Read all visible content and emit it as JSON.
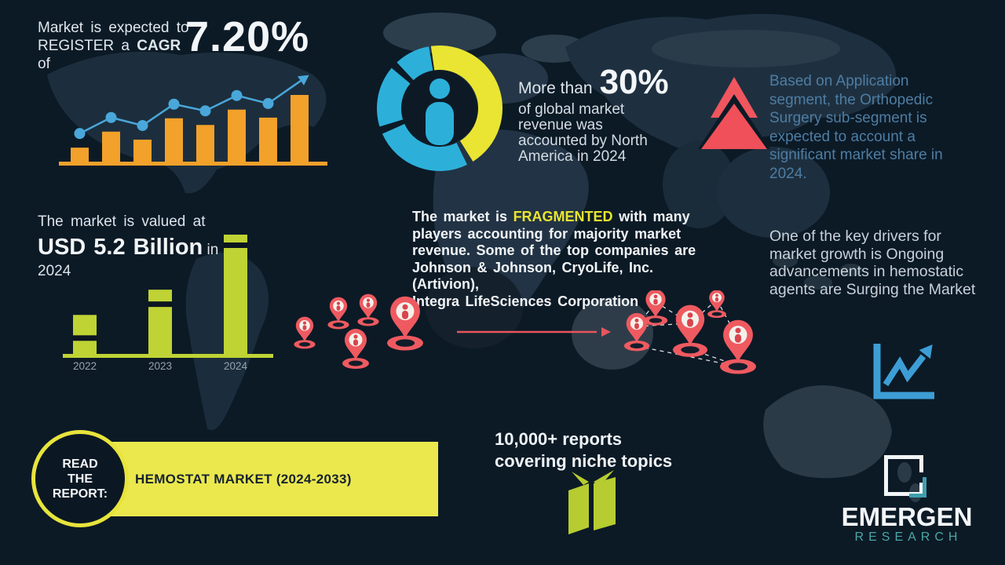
{
  "colors": {
    "background": "#0c1a26",
    "map_land": "#1d2f3e",
    "orange": "#f2a12b",
    "line_blue": "#49a7da",
    "donut_yellow": "#e9e532",
    "donut_blue": "#2cb0d9",
    "green": "#bfd334",
    "bar_stripe": "#0b1520",
    "coral": "#ee5a60",
    "banner_yellow": "#ebe84e",
    "teal": "#49a8a4",
    "muted_blue_text": "#4e7da3",
    "white_text": "#eef3f6"
  },
  "cagr": {
    "line1": "Market is expected to",
    "line2_pre": "REGISTER a ",
    "line2_bold": "CAGR",
    "line2_post": " of",
    "value": "7.20%"
  },
  "north_america": {
    "prefix": "More than",
    "value": "30%",
    "lines": [
      "of global market",
      "revenue was",
      "accounted by North",
      "America in 2024"
    ]
  },
  "application": {
    "lines": [
      "Based on Application",
      "segment, the Orthopedic",
      "Surgery sub-segment is",
      "expected to account a",
      "significant market share in",
      "2024."
    ]
  },
  "valuation": {
    "line1": "The market is valued at",
    "value": "USD 5.2 Billion",
    "suffix": " in",
    "line3": "2024"
  },
  "fragmented": {
    "l1_pre": "The market is ",
    "l1_hl": "FRAGMENTED",
    "l1_post": " with many",
    "lines": [
      "players accounting for majority market",
      "revenue. Some of the top companies are",
      "Johnson & Johnson, CryoLife, Inc. (Artivion),",
      "Integra LifeSciences Corporation"
    ]
  },
  "driver": {
    "lines": [
      "One of the key drivers for",
      "market growth is Ongoing",
      "advancements in hemostatic",
      "agents are Surging the Market"
    ]
  },
  "cta": {
    "circle_lines": [
      "READ",
      "THE",
      "REPORT:"
    ],
    "banner": "HEMOSTAT MARKET (2024-2033)"
  },
  "reports": {
    "line1": "10,000+ reports",
    "line2": "covering niche topics"
  },
  "brand": {
    "name": "EMERGEN",
    "sub": "RESEARCH"
  },
  "icons": {
    "donut_center": "person-icon",
    "growth_triangles": "double-up-arrow-icon",
    "map_markers": "location-pin-person-icon",
    "book": "open-book-icon",
    "trend": "line-chart-arrow-icon"
  },
  "chart_data": [
    {
      "type": "bar",
      "note": "CAGR growth bars with overlaid dotted trend line ending in arrow; no axis labels shown",
      "categories": [
        "",
        "",
        "",
        "",
        "",
        "",
        "",
        ""
      ],
      "values": [
        21,
        45,
        33,
        65,
        55,
        78,
        66,
        100
      ],
      "ylim": [
        0,
        100
      ],
      "grid": false,
      "legend": "none"
    },
    {
      "type": "bar",
      "note": "Market value bars; 2024 labeled USD 5.2 Billion, earlier years estimated from bar heights",
      "categories": [
        "2022",
        "2023",
        "2024"
      ],
      "values": [
        1.7,
        2.8,
        5.2
      ],
      "unit": "USD Billion",
      "grid": false,
      "legend": "none"
    },
    {
      "type": "donut",
      "note": "More than 30% of global market revenue accounted by North America in 2024",
      "segments": [
        {
          "color_key": "donut_yellow",
          "start_deg": -8,
          "end_deg": 148,
          "label": "North America share (>30%)"
        },
        {
          "color_key": "donut_blue",
          "start_deg": 154,
          "end_deg": 246,
          "label": ""
        },
        {
          "color_key": "donut_blue",
          "start_deg": 253,
          "end_deg": 310,
          "label": ""
        },
        {
          "color_key": "donut_blue",
          "start_deg": 317,
          "end_deg": 350,
          "label": ""
        }
      ]
    }
  ]
}
